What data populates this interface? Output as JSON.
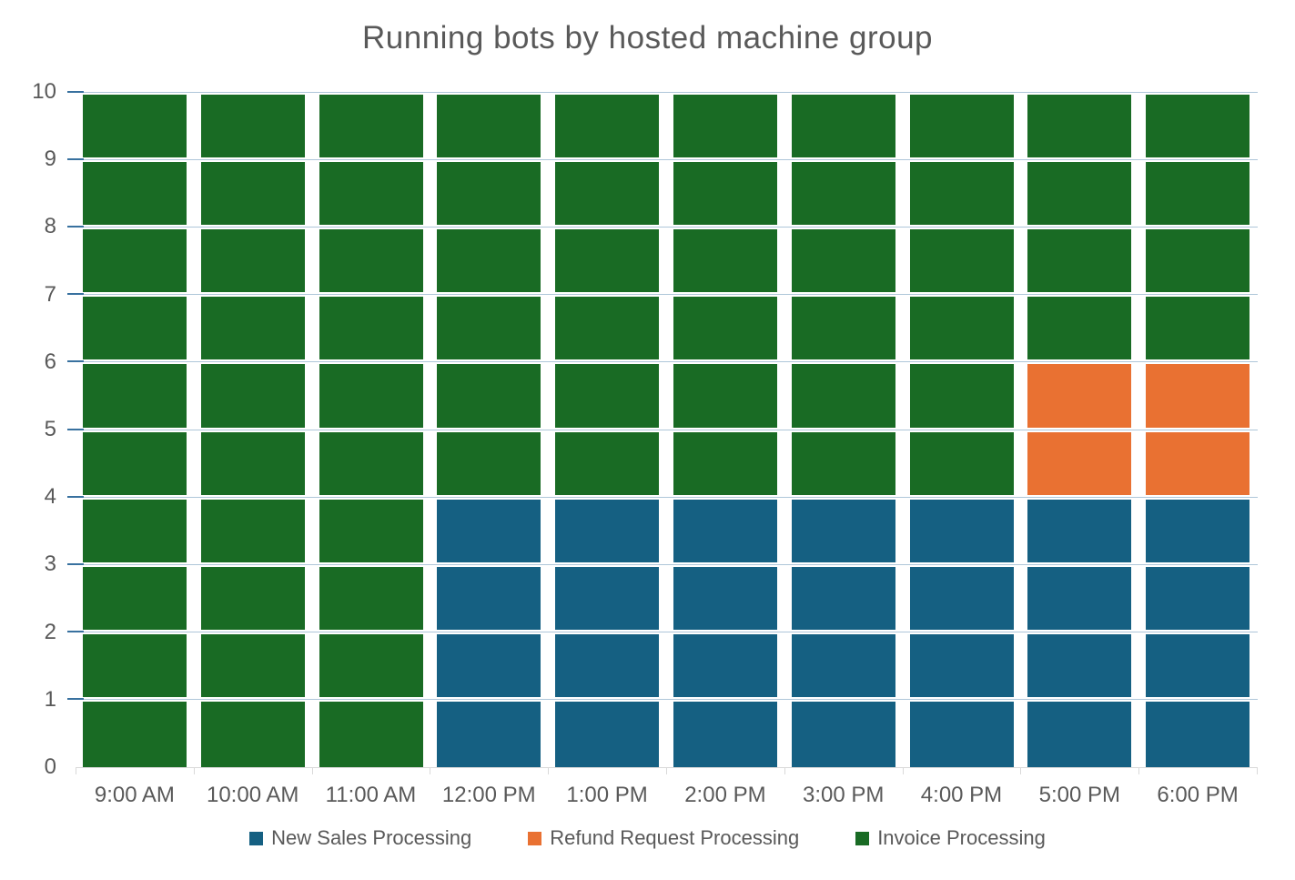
{
  "title": "Running bots by hosted machine group",
  "colors": {
    "new_sales_processing": "#156082",
    "refund_request_processing": "#E97132",
    "invoice_processing": "#196B24",
    "label_text": "#595959",
    "gridline": "#aec6d9",
    "gridline_stub": "#38719f",
    "axis_line": "#d9d9d9"
  },
  "chart_data": {
    "type": "bar",
    "stacked": true,
    "title": "Running bots by hosted machine group",
    "categories": [
      "9:00 AM",
      "10:00 AM",
      "11:00 AM",
      "12:00 PM",
      "1:00 PM",
      "2:00 PM",
      "3:00 PM",
      "4:00 PM",
      "5:00 PM",
      "6:00 PM"
    ],
    "series": [
      {
        "name": "New Sales Processing",
        "color": "#156082",
        "values": [
          0,
          0,
          0,
          4,
          4,
          4,
          4,
          4,
          4,
          4
        ]
      },
      {
        "name": "Refund Request Processing",
        "color": "#E97132",
        "values": [
          0,
          0,
          0,
          0,
          0,
          0,
          0,
          0,
          2,
          2
        ]
      },
      {
        "name": "Invoice Processing",
        "color": "#196B24",
        "values": [
          10,
          10,
          10,
          6,
          6,
          6,
          6,
          6,
          4,
          4
        ]
      }
    ],
    "xlabel": "",
    "ylabel": "",
    "ylim": [
      0,
      10
    ],
    "yticks": [
      0,
      1,
      2,
      3,
      4,
      5,
      6,
      7,
      8,
      9,
      10
    ],
    "grid": true,
    "legend_position": "bottom",
    "unit_blocks": true
  },
  "legend": {
    "items": [
      {
        "label": "New Sales Processing",
        "color": "#156082"
      },
      {
        "label": "Refund Request Processing",
        "color": "#E97132"
      },
      {
        "label": "Invoice Processing",
        "color": "#196B24"
      }
    ]
  }
}
